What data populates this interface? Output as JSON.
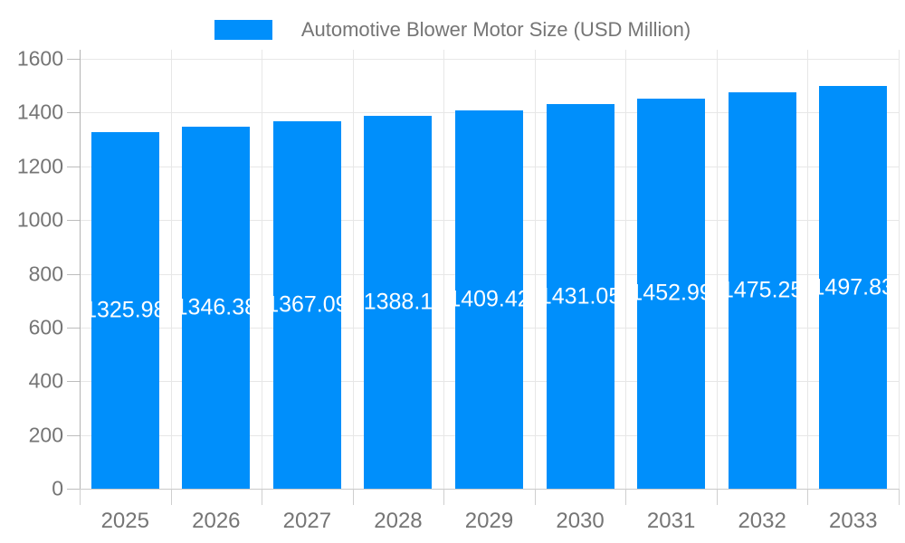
{
  "chart_data": {
    "type": "bar",
    "title": "Automotive Blower Motor Size (USD Million)",
    "categories": [
      "2025",
      "2026",
      "2027",
      "2028",
      "2029",
      "2030",
      "2031",
      "2032",
      "2033"
    ],
    "values": [
      1325.98,
      1346.38,
      1367.09,
      1388.1,
      1409.42,
      1431.05,
      1452.99,
      1475.25,
      1497.83
    ],
    "value_labels": [
      "1325.98",
      "1346.38",
      "1367.09",
      "1388.1",
      "1409.42",
      "1431.05",
      "1452.99",
      "1475.25",
      "1497.83"
    ],
    "xlabel": "",
    "ylabel": "",
    "ylim": [
      0,
      1600
    ],
    "yticks": [
      0,
      200,
      400,
      600,
      800,
      1000,
      1200,
      1400,
      1600
    ],
    "grid": true,
    "legend_position": "top",
    "bar_color": "#008FFB",
    "data_label_color": "#ffffff",
    "axis_label_color": "#757575",
    "grid_color": "#e7e7e7"
  }
}
